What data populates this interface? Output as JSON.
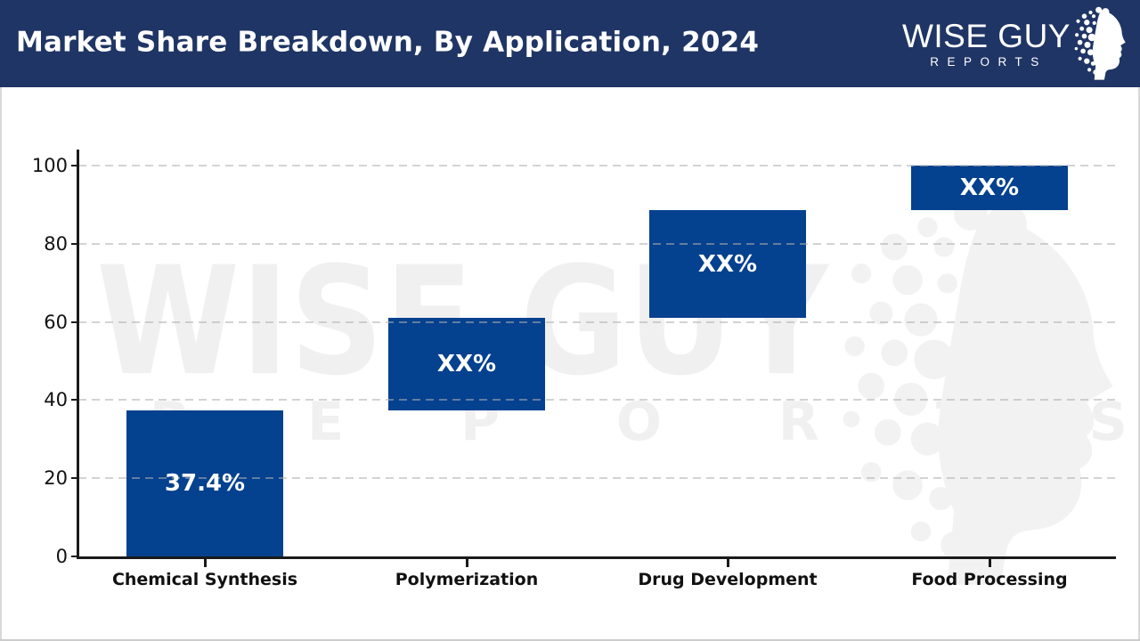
{
  "header": {
    "title": "Market Share Breakdown, By Application, 2024",
    "logo": {
      "line1": "WISE GUY",
      "line2": "REPORTS"
    }
  },
  "watermark": {
    "line1": "WISE GUY",
    "line2": "R E P O R T S"
  },
  "chart_data": {
    "type": "bar",
    "subtype": "waterfall",
    "title": "Market Share Breakdown, By Application, 2024",
    "categories": [
      "Chemical Synthesis",
      "Polymerization",
      "Drug Development",
      "Food Processing"
    ],
    "segments": [
      {
        "category": "Chemical Synthesis",
        "start": 0,
        "end": 37.4,
        "value_label": "37.4%"
      },
      {
        "category": "Polymerization",
        "start": 37.4,
        "end": 61.0,
        "value_label": "XX%"
      },
      {
        "category": "Drug Development",
        "start": 61.0,
        "end": 88.6,
        "value_label": "XX%"
      },
      {
        "category": "Food Processing",
        "start": 88.6,
        "end": 100.0,
        "value_label": "XX%"
      }
    ],
    "y_ticks": [
      0,
      20,
      40,
      60,
      80,
      100
    ],
    "ylim": [
      0,
      104
    ],
    "xlabel": "",
    "ylabel": "",
    "grid": "horizontal-dashed",
    "legend": "none",
    "bar_color": "#04418f",
    "label_color": "#ffffff",
    "axis_color": "#1a1a1a",
    "header_color": "#1f3565",
    "watermark_color": "#f0f0f0"
  }
}
